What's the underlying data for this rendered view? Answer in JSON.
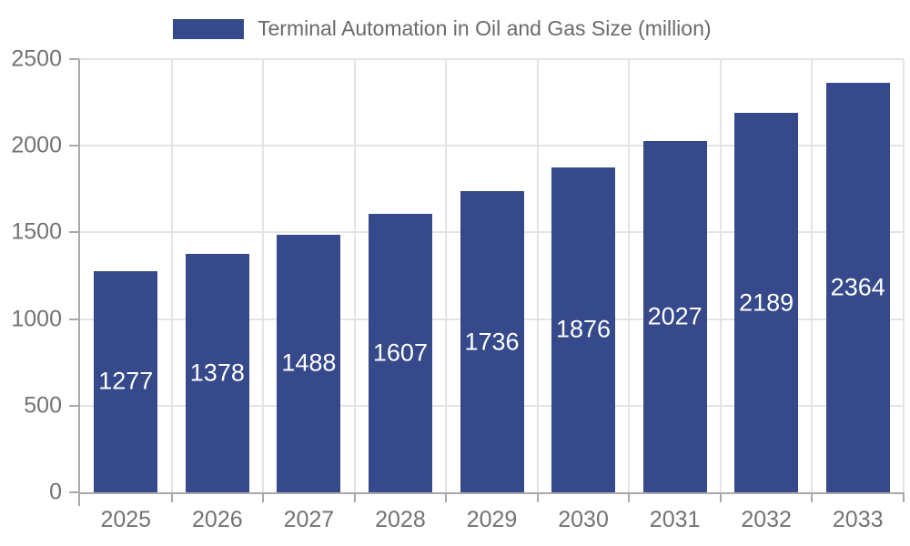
{
  "legend": {
    "label": "Terminal Automation in Oil and Gas Size (million)"
  },
  "chart_data": {
    "type": "bar",
    "title": "Terminal Automation in Oil and Gas Size (million)",
    "categories": [
      "2025",
      "2026",
      "2027",
      "2028",
      "2029",
      "2030",
      "2031",
      "2032",
      "2033"
    ],
    "values": [
      1277,
      1378,
      1488,
      1607,
      1736,
      1876,
      2027,
      2189,
      2364
    ],
    "xlabel": "",
    "ylabel": "",
    "ylim": [
      0,
      2500
    ],
    "y_ticks": [
      0,
      500,
      1000,
      1500,
      2000,
      2500
    ],
    "grid": true,
    "legend_position": "top-center",
    "value_label_position": "inside-center",
    "colors": {
      "bar": "#36498B",
      "value_label": "#FFFFFF",
      "axis_text": "#737373",
      "title_text": "#6A6A6A",
      "axis_line": "#A9A9A9",
      "gridline": "#E4E4E4",
      "background": "#FFFFFF"
    }
  }
}
